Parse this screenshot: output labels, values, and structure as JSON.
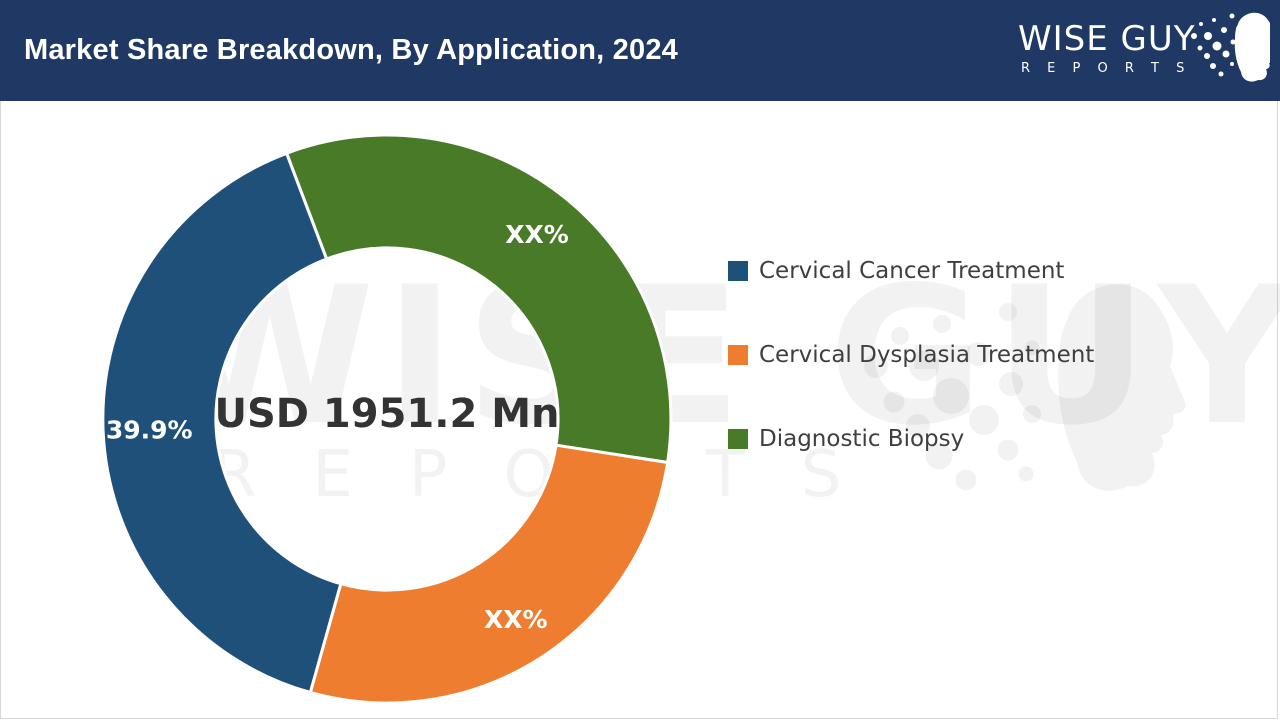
{
  "header": {
    "title": "Market Share Breakdown, By Application, 2024",
    "logo": {
      "line1": "WISE GUY",
      "line2": "R E P O R T S"
    }
  },
  "watermark": {
    "line1": "WISE GUY",
    "line2": "REPORTS"
  },
  "chart_data": {
    "type": "donut",
    "title": "Market Share Breakdown, By Application, 2024",
    "center_label": "USD 1951.2 Mn",
    "start_angle_deg": 110.7,
    "direction": "clockwise",
    "legend_position": "right",
    "slices": [
      {
        "name": "Cervical Cancer Treatment",
        "display_label": "39.9%",
        "value_pct_est": 39.9,
        "color": "#1F507A"
      },
      {
        "name": "Cervical Dysplasia Treatment",
        "display_label": "XX%",
        "value_pct_est": 26.9,
        "color": "#EE7D30"
      },
      {
        "name": "Diagnostic Biopsy",
        "display_label": "XX%",
        "value_pct_est": 33.2,
        "color": "#487A28"
      }
    ]
  },
  "colors": {
    "header_bg": "#1F3864",
    "center_text": "#333333",
    "legend_text": "#3F3F3F",
    "watermark": "rgba(0,0,0,0.05)"
  }
}
